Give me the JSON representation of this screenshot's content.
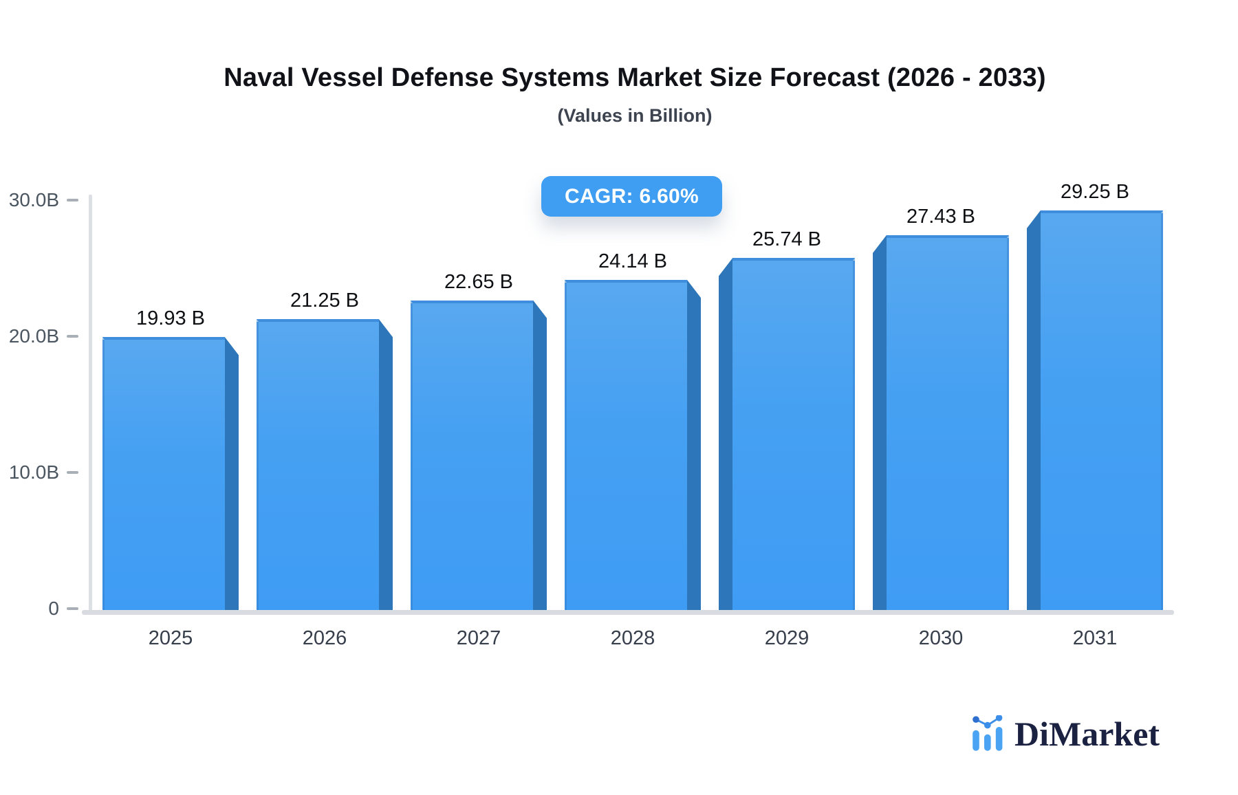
{
  "chart_data": {
    "type": "bar",
    "title": "Naval Vessel Defense Systems Market Size Forecast (2026 - 2033)",
    "subtitle": "(Values in Billion)",
    "cagr_label": "CAGR: 6.60%",
    "categories": [
      "2025",
      "2026",
      "2027",
      "2028",
      "2029",
      "2030",
      "2031"
    ],
    "values": [
      19.93,
      21.25,
      22.65,
      24.14,
      25.74,
      27.43,
      29.25
    ],
    "value_labels": [
      "19.93 B",
      "21.25 B",
      "22.65 B",
      "24.14 B",
      "25.74 B",
      "27.43 B",
      "29.25 B"
    ],
    "xlabel": "",
    "ylabel": "",
    "ylim": [
      0,
      30
    ],
    "yticks": [
      {
        "value": 0,
        "label": "0"
      },
      {
        "value": 10,
        "label": "10.0B"
      },
      {
        "value": 20,
        "label": "20.0B"
      },
      {
        "value": 30,
        "label": "30.0B"
      }
    ],
    "grid": false,
    "legend": null
  },
  "logo": {
    "text": "DiMarket",
    "icon": "mini-bar-chart-trend-icon"
  },
  "colors": {
    "bar_top": "#58a8f0",
    "bar_bottom": "#3f9cf4",
    "bar_side_face": "#2e76ba",
    "bar_top_edge": "#3e8edd",
    "badge_bg": "#3f9df2",
    "axis_gray": "#d8dbdf",
    "y_tick_text": "#4a5560",
    "x_tick_text": "#353e4a",
    "value_label_text": "#0e1013",
    "logo_blue": "#4aa3f3",
    "logo_text": "#1b2140"
  }
}
